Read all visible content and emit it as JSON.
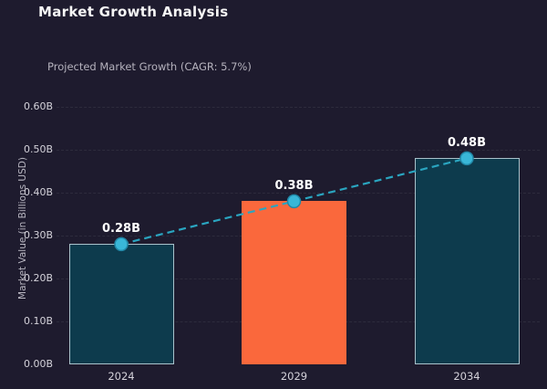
{
  "chart_data": {
    "type": "bar",
    "title": "Market Growth Analysis",
    "subtitle": "Projected Market Growth (CAGR: 5.7%)",
    "categories": [
      "2024",
      "2029",
      "2034"
    ],
    "values": [
      0.28,
      0.38,
      0.48
    ],
    "value_labels": [
      "0.28B",
      "0.38B",
      "0.48B"
    ],
    "trend_line": {
      "type": "line",
      "style": "dashed",
      "values": [
        0.28,
        0.38,
        0.48
      ],
      "marker": "circle"
    },
    "xlabel": "",
    "ylabel": "Market Value (in Billions USD)",
    "ylim": [
      0,
      0.6
    ],
    "yticks": [
      0,
      0.1,
      0.2,
      0.3,
      0.4,
      0.5,
      0.6
    ],
    "ytick_labels": [
      "0.00B",
      "0.10B",
      "0.20B",
      "0.30B",
      "0.40B",
      "0.50B",
      "0.60B"
    ],
    "grid": true,
    "legend": false,
    "colors": {
      "background": "#1e1b2e",
      "bar_colors": [
        "#0d3b4d",
        "#fa683c",
        "#0d3b4d"
      ],
      "bar_borders": [
        "#a9c2cb",
        null,
        "#a9c2cb"
      ],
      "line": "#2aa5c0",
      "marker_fill": "#39b7d8",
      "marker_stroke": "#2187a6",
      "grid_color": "rgba(255,255,255,0.07)",
      "title_color": "#f5f5f5",
      "subtitle_color": "#b5b2bd",
      "tick_color": "#d4d2da",
      "data_label_color": "#ffffff"
    }
  }
}
